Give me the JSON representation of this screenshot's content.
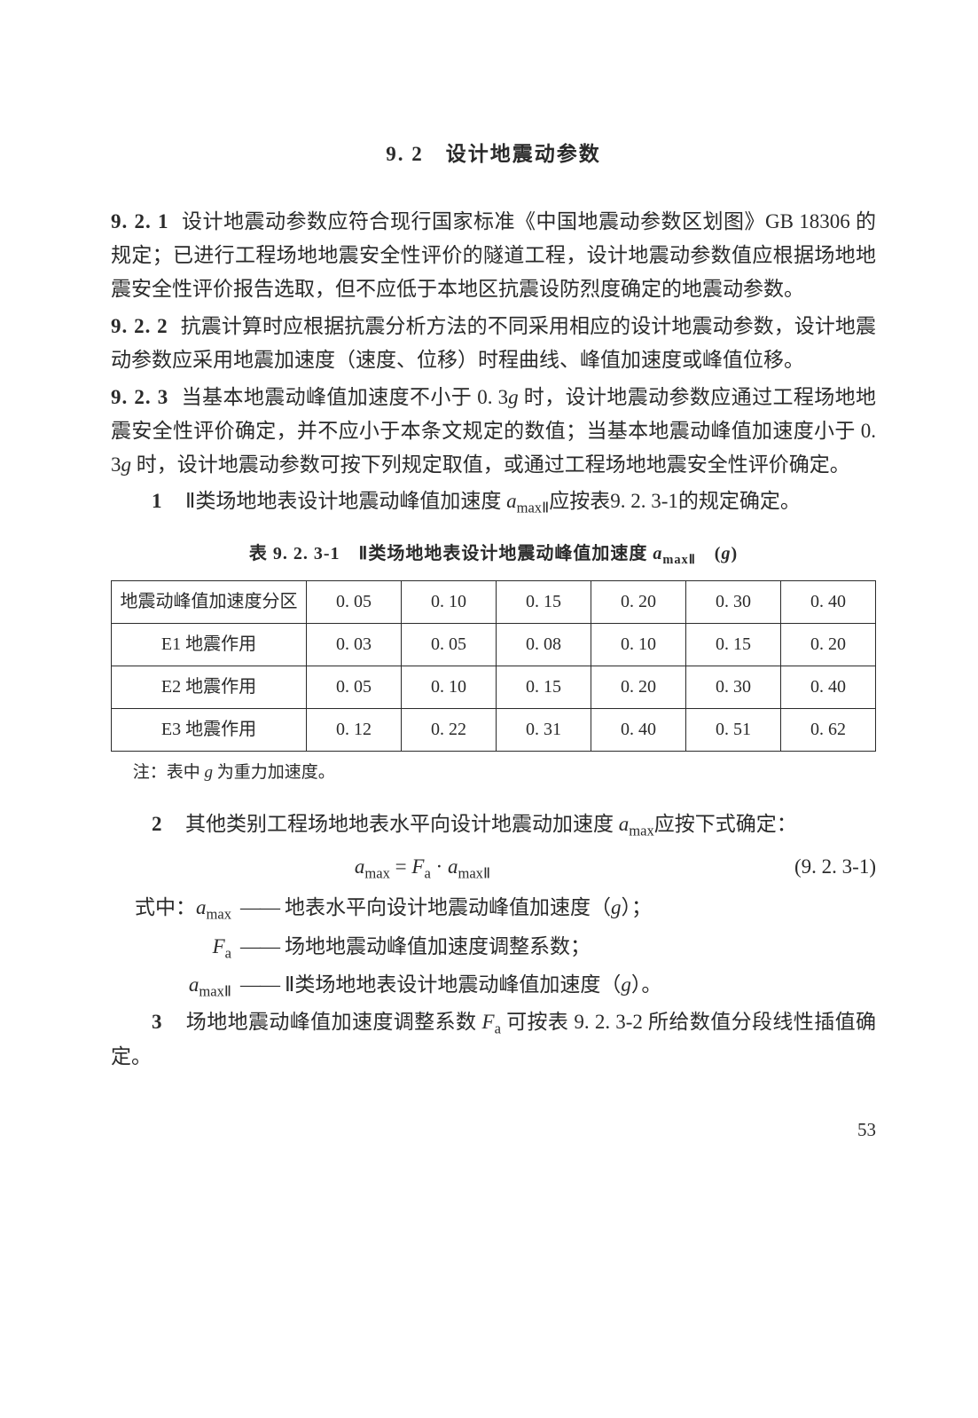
{
  "section": {
    "title": "9. 2　设计地震动参数"
  },
  "clause_921": {
    "num": "9. 2. 1",
    "text": "设计地震动参数应符合现行国家标准《中国地震动参数区划图》GB 18306 的规定；已进行工程场地地震安全性评价的隧道工程，设计地震动参数值应根据场地地震安全性评价报告选取，但不应低于本地区抗震设防烈度确定的地震动参数。"
  },
  "clause_922": {
    "num": "9. 2. 2",
    "text": "抗震计算时应根据抗震分析方法的不同采用相应的设计地震动参数，设计地震动参数应采用地震加速度（速度、位移）时程曲线、峰值加速度或峰值位移。"
  },
  "clause_923": {
    "num": "9. 2. 3",
    "p1a": "当基本地震动峰值加速度不小于 0. 3",
    "p1b": " 时，设计地震动参数应通过工程场地地震安全性评价确定，并不应小于本条文规定的数值；当基本地震动峰值加速度小于 0. 3",
    "p1c": " 时，设计地震动参数可按下列规定取值，或通过工程场地地震安全性评价确定。",
    "item1_a": "1",
    "item1_b": "Ⅱ类场地地表设计地震动峰值加速度 ",
    "item1_c": "应按表9. 2. 3-1的规定确定。",
    "item2_a": "2",
    "item2_b": "其他类别工程场地地表水平向设计地震动加速度 ",
    "item2_c": "应按下式确定：",
    "item3_a": "3",
    "item3_b": "场地地震动峰值加速度调整系数 ",
    "item3_c": " 可按表 9. 2. 3-2 所给数值分段线性插值确定。"
  },
  "table_9231": {
    "caption_prefix": "表 9. 2. 3-1　Ⅱ类场地地表设计地震动峰值加速度 ",
    "caption_suffix": "　(",
    "caption_end": ")",
    "cols": [
      "地震动峰值加速度分区",
      "0. 05",
      "0. 10",
      "0. 15",
      "0. 20",
      "0. 30",
      "0. 40"
    ],
    "rows": [
      {
        "label": "E1 地震作用",
        "vals": [
          "0. 03",
          "0. 05",
          "0. 08",
          "0. 10",
          "0. 15",
          "0. 20"
        ]
      },
      {
        "label": "E2 地震作用",
        "vals": [
          "0. 05",
          "0. 10",
          "0. 15",
          "0. 20",
          "0. 30",
          "0. 40"
        ]
      },
      {
        "label": "E3 地震作用",
        "vals": [
          "0. 12",
          "0. 22",
          "0. 31",
          "0. 40",
          "0. 51",
          "0. 62"
        ]
      }
    ],
    "note_prefix": "注：表中 ",
    "note_suffix": " 为重力加速度。"
  },
  "formula": {
    "lhs": "a",
    "eq": " = ",
    "rhs1": "F",
    "dot": " · ",
    "rhs2": "a",
    "num": "(9. 2. 3-1)"
  },
  "where": {
    "prefix": "式中：",
    "r1": {
      "suffix": "地表水平向设计地震动峰值加速度（",
      "end": "）；"
    },
    "r2": {
      "suffix": "场地地震动峰值加速度调整系数；"
    },
    "r3": {
      "suffix": "Ⅱ类场地地表设计地震动峰值加速度（",
      "end": "）。"
    }
  },
  "pageNum": "53",
  "sym": {
    "g": "g",
    "a": "a",
    "F": "F",
    "max": "max",
    "maxII": "maxⅡ",
    "sub_a": "a"
  }
}
